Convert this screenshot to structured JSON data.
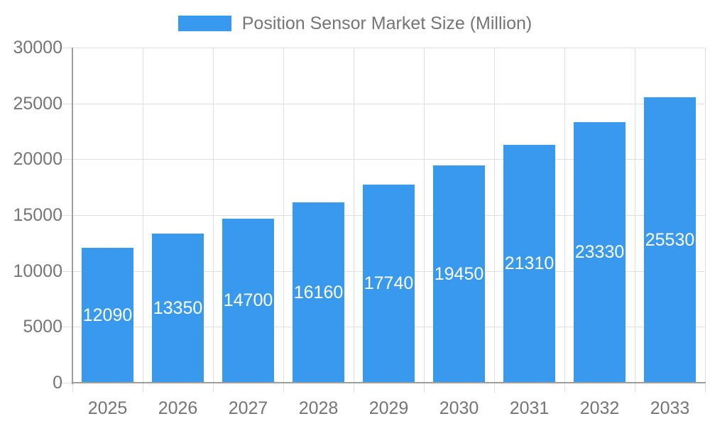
{
  "chart_data": {
    "type": "bar",
    "title": "Position Sensor Market Size (Million)",
    "categories": [
      "2025",
      "2026",
      "2027",
      "2028",
      "2029",
      "2030",
      "2031",
      "2032",
      "2033"
    ],
    "series": [
      {
        "name": "Position Sensor Market Size (Million)",
        "values": [
          12090,
          13350,
          14700,
          16160,
          17740,
          19450,
          21310,
          23330,
          25530
        ]
      }
    ],
    "value_labels": [
      "12090",
      "13350",
      "14700",
      "16160",
      "17740",
      "19450",
      "21310",
      "23330",
      "25530"
    ],
    "xlabel": "",
    "ylabel": "",
    "ylim": [
      0,
      30000
    ],
    "yticks": [
      0,
      5000,
      10000,
      15000,
      20000,
      25000,
      30000
    ],
    "ytick_labels": [
      "0",
      "5000",
      "10000",
      "15000",
      "20000",
      "25000",
      "30000"
    ],
    "grid": true,
    "legend_position": "top-center",
    "colors": {
      "bar": "#3999ec",
      "axis_text": "#757575",
      "value_text": "#ffffff",
      "grid_line": "#e0e0e0",
      "axis_line": "#9e9e9e",
      "background": "#ffffff"
    }
  }
}
